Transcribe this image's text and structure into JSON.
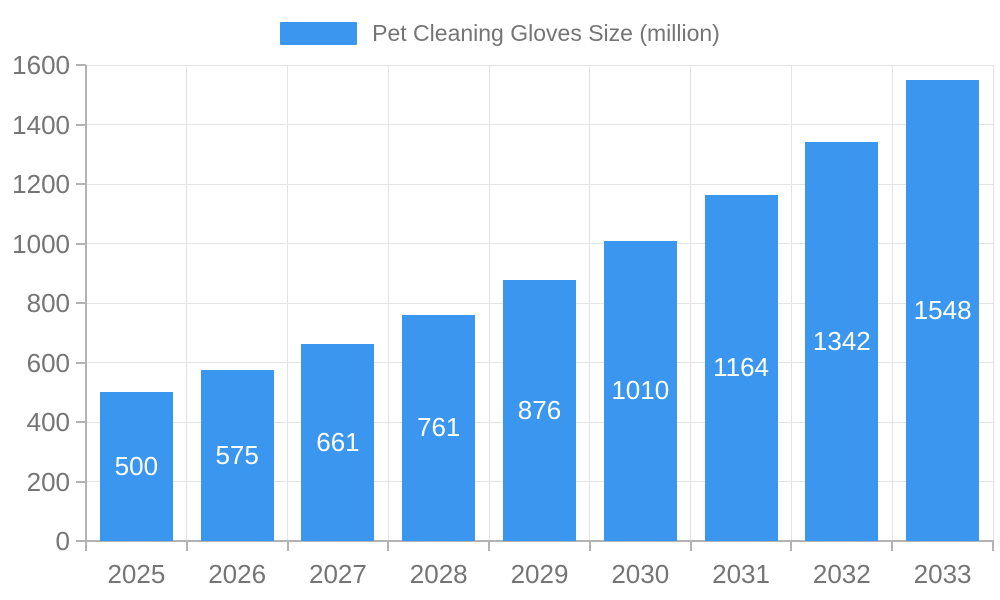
{
  "legend": {
    "label": "Pet Cleaning Gloves Size (million)"
  },
  "chart_data": {
    "type": "bar",
    "title": "Pet Cleaning Gloves Size (million)",
    "categories": [
      "2025",
      "2026",
      "2027",
      "2028",
      "2029",
      "2030",
      "2031",
      "2032",
      "2033"
    ],
    "values": [
      500,
      575,
      661,
      761,
      876,
      1010,
      1164,
      1342,
      1548
    ],
    "value_labels": [
      "500",
      "575",
      "661",
      "761",
      "876",
      "1010",
      "1164",
      "1342",
      "1548"
    ],
    "xlabel": "",
    "ylabel": "",
    "ylim": [
      0,
      1600
    ],
    "yticks": [
      0,
      200,
      400,
      600,
      800,
      1000,
      1200,
      1400,
      1600
    ],
    "ytick_labels": [
      "0",
      "200",
      "400",
      "600",
      "800",
      "1000",
      "1200",
      "1400",
      "1600"
    ],
    "grid": true,
    "legend_position": "top",
    "value_labels_inside_bars": true,
    "colors": {
      "bar": "#3a96ee",
      "value_label": "#ffffff",
      "axis": "#b3b3b3",
      "grid": "#e4e4e4",
      "tick_label": "#757575",
      "legend_text": "#757575",
      "background": "#ffffff"
    }
  }
}
